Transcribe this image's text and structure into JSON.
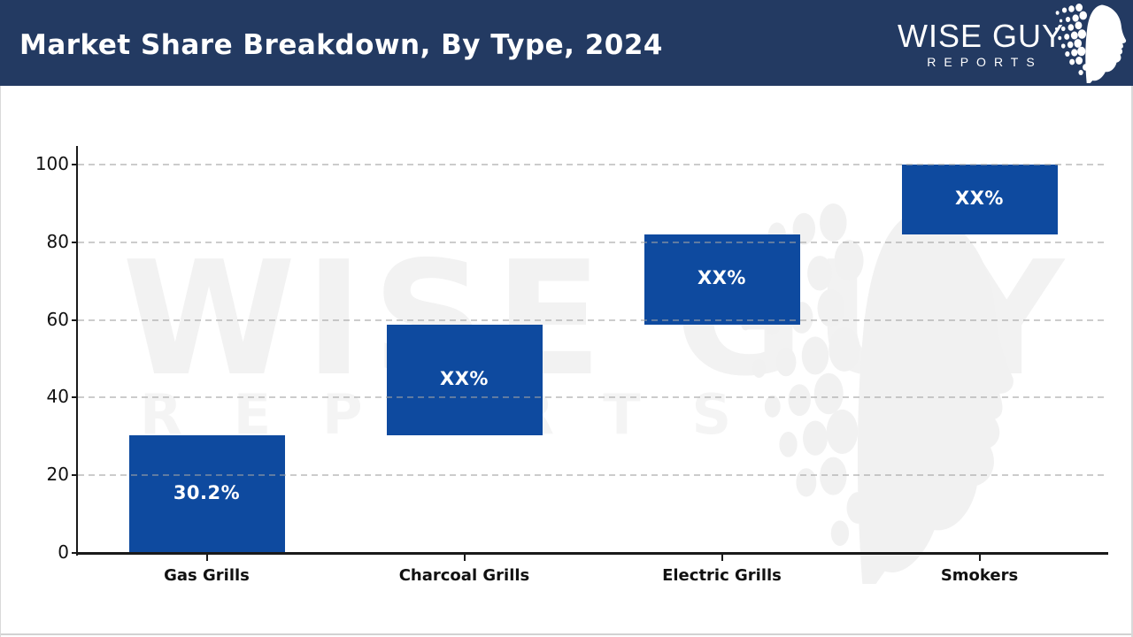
{
  "header": {
    "title": "Market Share Breakdown, By Type, 2024",
    "logo": {
      "line1": "WISE GUY",
      "line2": "REPORTS",
      "icon": "dotted-head-profile-icon"
    }
  },
  "watermark": {
    "line1": "WISE GUY",
    "line2": "REPORTS",
    "icon": "dotted-head-profile-watermark"
  },
  "colors": {
    "header_background": "#233A62",
    "bar_fill": "#0E4A9F",
    "bar_label_text": "#ffffff",
    "axis_text": "#111111",
    "gridline": "#d4d4d4",
    "watermark": "#f2f2f2"
  },
  "chart_data": {
    "type": "bar",
    "subtype": "waterfall",
    "title": "Market Share Breakdown, By Type, 2024",
    "categories": [
      "Gas Grills",
      "Charcoal Grills",
      "Electric Grills",
      "Smokers"
    ],
    "segments": [
      {
        "category": "Gas Grills",
        "start": 0,
        "end": 30.2,
        "label": "30.2%"
      },
      {
        "category": "Charcoal Grills",
        "start": 30.2,
        "end": 58.8,
        "label": "XX%"
      },
      {
        "category": "Electric Grills",
        "start": 58.8,
        "end": 82.0,
        "label": "XX%"
      },
      {
        "category": "Smokers",
        "start": 82.0,
        "end": 100.0,
        "label": "XX%"
      }
    ],
    "xlabel": "",
    "ylabel": "",
    "ylim": [
      0,
      100
    ],
    "yticks": [
      0,
      20,
      40,
      60,
      80,
      100
    ],
    "grid": "horizontal-dashed",
    "legend": "none",
    "bar_color": "#0E4A9F"
  }
}
